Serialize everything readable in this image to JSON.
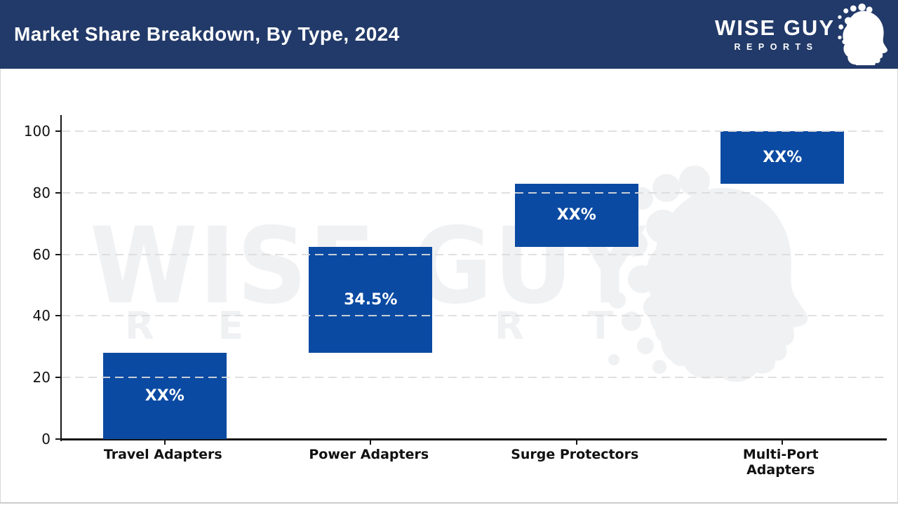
{
  "header": {
    "title": "Market Share Breakdown, By Type, 2024",
    "logo_line1": "WISE GUY",
    "logo_line2": "REPORTS"
  },
  "watermark": {
    "line1": "WISE GUY",
    "line2": "R E P O R T S"
  },
  "chart_data": {
    "type": "bar",
    "subtype": "floating-waterfall",
    "title": "Market Share Breakdown, By Type, 2024",
    "xlabel": "",
    "ylabel": "",
    "categories": [
      "Travel Adapters",
      "Power Adapters",
      "Surge Protectors",
      "Multi-Port Adapters"
    ],
    "series": [
      {
        "name": "Market Share",
        "segments": [
          {
            "category": "Travel Adapters",
            "from": 0,
            "to": 28,
            "label": "XX%"
          },
          {
            "category": "Power Adapters",
            "from": 28,
            "to": 62.5,
            "label": "34.5%"
          },
          {
            "category": "Surge Protectors",
            "from": 62.5,
            "to": 83,
            "label": "XX%"
          },
          {
            "category": "Multi-Port Adapters",
            "from": 83,
            "to": 100,
            "label": "XX%"
          }
        ]
      }
    ],
    "ylim": [
      0,
      100
    ],
    "yticks": [
      0,
      20,
      40,
      60,
      80,
      100
    ],
    "grid": "horizontal-dashed",
    "legend": "none"
  },
  "colors": {
    "header_bg": "#223a69",
    "bar": "#0b4aa2",
    "bar_label": "#ffffff",
    "grid": "#dcdcdc",
    "axis": "#161616",
    "watermark": "#f0f1f3"
  }
}
